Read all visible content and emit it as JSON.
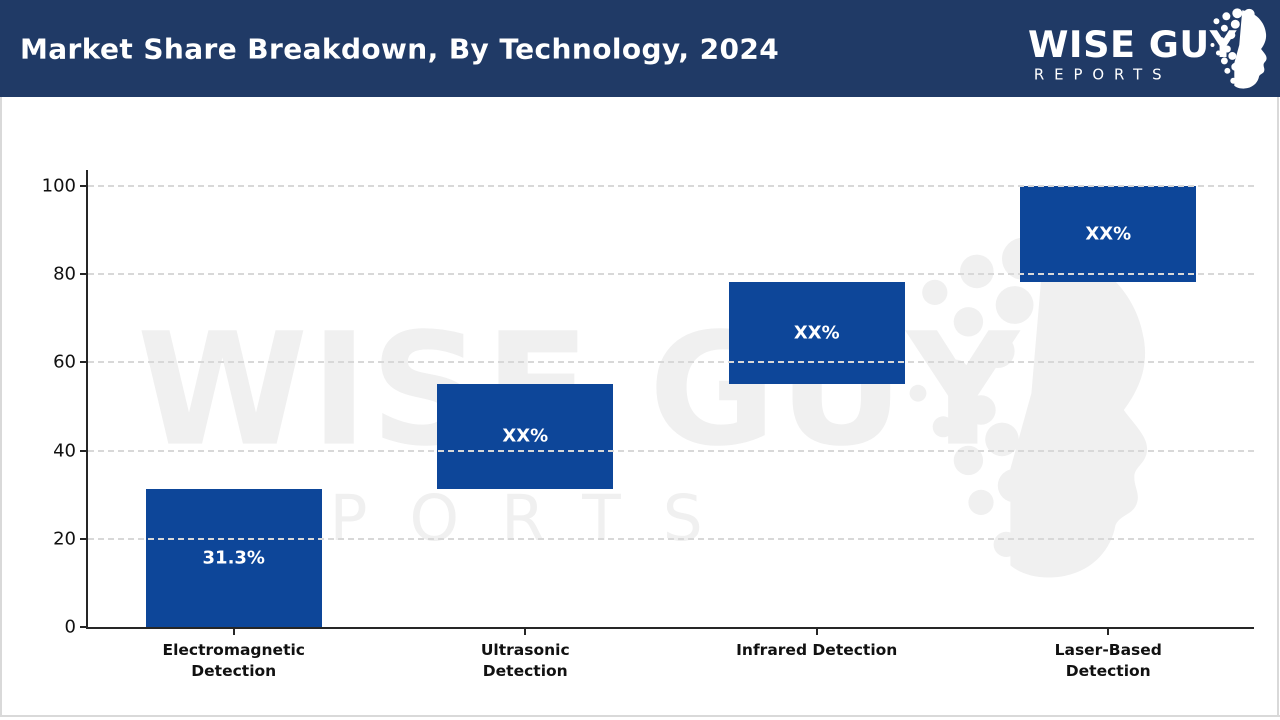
{
  "header": {
    "title": "Market Share Breakdown, By Technology, 2024",
    "logo": {
      "brand_top": "WISE GUY",
      "brand_bottom": "REPORTS"
    }
  },
  "watermark": {
    "big": "WISE GUY",
    "small": "REPORTS"
  },
  "colors": {
    "header_bg": "#203a66",
    "bar": "#0d4699",
    "bar_label": "#ffffff",
    "grid": "#d8d8d8",
    "axis": "#262626",
    "frame_border": "#d9d9d9",
    "watermark": "#f0f0f0"
  },
  "chart_data": {
    "type": "bar",
    "subtype": "waterfall-stacked",
    "title": "Market Share Breakdown, By Technology, 2024",
    "unit": "percent",
    "categories": [
      "Electromagnetic Detection",
      "Ultrasonic Detection",
      "Infrared Detection",
      "Laser-Based Detection"
    ],
    "category_label_lines": [
      [
        "Electromagnetic",
        "Detection"
      ],
      [
        "Ultrasonic",
        "Detection"
      ],
      [
        "Infrared Detection"
      ],
      [
        "Laser-Based",
        "Detection"
      ]
    ],
    "bars": [
      {
        "start": 0,
        "end": 31.3,
        "value": 31.3,
        "label": "31.3%"
      },
      {
        "start": 31.3,
        "end": 55.2,
        "value": 23.9,
        "label": "XX%"
      },
      {
        "start": 55.2,
        "end": 78.2,
        "value": 23.0,
        "label": "XX%"
      },
      {
        "start": 78.2,
        "end": 100,
        "value": 21.8,
        "label": "XX%"
      }
    ],
    "yticks": [
      0,
      20,
      40,
      60,
      80,
      100
    ],
    "ylim": [
      0,
      103.6
    ],
    "xlabel": "",
    "ylabel": "",
    "grid": "horizontal-dashed",
    "grid_above_bars": true,
    "legend": "none"
  }
}
